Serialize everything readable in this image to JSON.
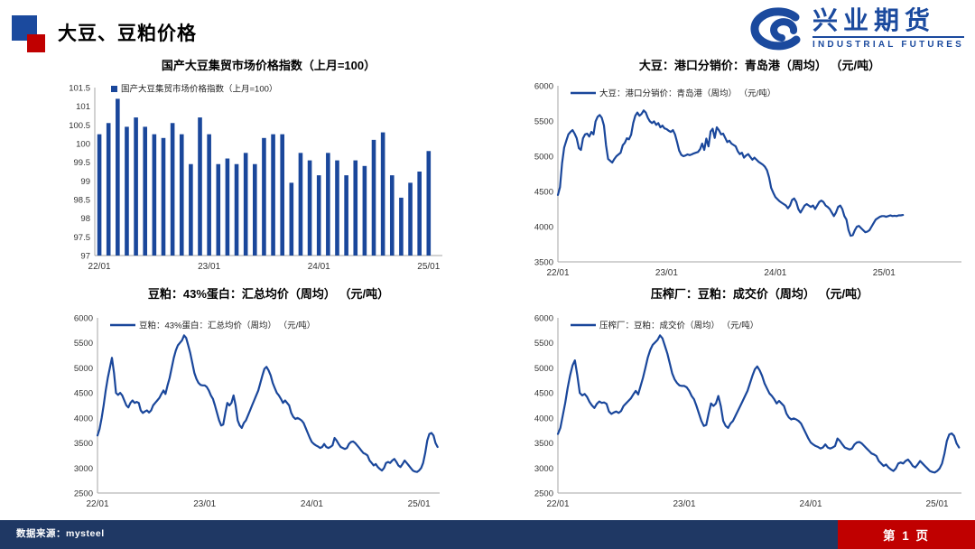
{
  "header": {
    "title": "大豆、豆粕价格",
    "logo_cn": "兴业期货",
    "logo_en": "INDUSTRIAL FUTURES"
  },
  "footer": {
    "source": "数据来源：mysteel",
    "page": "第 1 页"
  },
  "colors": {
    "chart_blue": "#1A479B",
    "brand_blue": "#1B4A9E",
    "accent_red": "#C00000",
    "footer_navy": "#1F3864",
    "axis_line": "#A6A6A6",
    "tick_text": "#333333"
  },
  "chart_data": [
    {
      "type": "bar",
      "title": "国产大豆集贸市场价格指数（上月=100）",
      "legend": "国产大豆集贸市场价格指数（上月=100）",
      "ylabel": "",
      "xlabel": "",
      "ylim": [
        97,
        101.5
      ],
      "yticks": [
        97,
        97.5,
        98,
        98.5,
        99,
        99.5,
        100,
        100.5,
        101,
        101.5
      ],
      "x_total": 38,
      "xticks": [
        {
          "label": "22/01",
          "pos": 0.5
        },
        {
          "label": "23/01",
          "pos": 12.5
        },
        {
          "label": "24/01",
          "pos": 24.5
        },
        {
          "label": "25/01",
          "pos": 36.5
        }
      ],
      "grid": false,
      "values": [
        100.25,
        100.55,
        101.2,
        100.45,
        100.7,
        100.45,
        100.25,
        100.15,
        100.55,
        100.25,
        99.45,
        100.7,
        100.25,
        99.45,
        99.6,
        99.45,
        99.75,
        99.45,
        100.15,
        100.25,
        100.25,
        98.95,
        99.75,
        99.55,
        99.15,
        99.75,
        99.55,
        99.15,
        99.55,
        99.4,
        100.1,
        100.3,
        99.15,
        98.55,
        98.95,
        99.25,
        99.8
      ]
    },
    {
      "type": "line",
      "title": "大豆：港口分销价：青岛港（周均） （元/吨）",
      "legend": "大豆：港口分销价：青岛港（周均） （元/吨）",
      "ylabel": "",
      "xlabel": "",
      "ylim": [
        3500,
        6000
      ],
      "yticks": [
        3500,
        4000,
        4500,
        5000,
        5500,
        6000
      ],
      "x_total": 193,
      "xticks": [
        {
          "label": "22/01",
          "pos": 0
        },
        {
          "label": "23/01",
          "pos": 52
        },
        {
          "label": "24/01",
          "pos": 104
        },
        {
          "label": "25/01",
          "pos": 156
        }
      ],
      "grid": false,
      "values": [
        4450,
        4560,
        4900,
        5120,
        5220,
        5310,
        5345,
        5370,
        5320,
        5255,
        5115,
        5090,
        5255,
        5310,
        5320,
        5280,
        5345,
        5310,
        5495,
        5560,
        5585,
        5545,
        5435,
        5155,
        4960,
        4935,
        4910,
        4960,
        5000,
        5025,
        5050,
        5155,
        5190,
        5255,
        5240,
        5305,
        5470,
        5575,
        5620,
        5575,
        5600,
        5650,
        5620,
        5545,
        5495,
        5470,
        5495,
        5445,
        5470,
        5410,
        5435,
        5395,
        5385,
        5360,
        5345,
        5370,
        5310,
        5200,
        5080,
        5020,
        5000,
        5010,
        5025,
        5015,
        5025,
        5040,
        5050,
        5060,
        5100,
        5180,
        5090,
        5250,
        5140,
        5350,
        5390,
        5260,
        5410,
        5370,
        5310,
        5320,
        5260,
        5200,
        5220,
        5180,
        5160,
        5140,
        5070,
        5030,
        5050,
        4980,
        5010,
        5030,
        4990,
        4950,
        4980,
        4950,
        4920,
        4900,
        4880,
        4850,
        4800,
        4700,
        4550,
        4480,
        4420,
        4390,
        4360,
        4340,
        4320,
        4300,
        4260,
        4300,
        4380,
        4400,
        4350,
        4250,
        4200,
        4250,
        4300,
        4320,
        4300,
        4280,
        4300,
        4250,
        4300,
        4350,
        4370,
        4350,
        4300,
        4280,
        4250,
        4200,
        4150,
        4200,
        4280,
        4300,
        4250,
        4150,
        4100,
        3950,
        3870,
        3880,
        3950,
        4000,
        4010,
        3980,
        3950,
        3920,
        3930,
        3950,
        4000,
        4050,
        4100,
        4120,
        4140,
        4150,
        4150,
        4140,
        4150,
        4160,
        4150,
        4155,
        4150,
        4160,
        4160,
        4165
      ]
    },
    {
      "type": "line",
      "title": "豆粕：43%蛋白：汇总均价（周均） （元/吨）",
      "legend": "豆粕：43%蛋白：汇总均价（周均） （元/吨）",
      "ylabel": "",
      "xlabel": "",
      "ylim": [
        2500,
        6000
      ],
      "yticks": [
        2500,
        3000,
        3500,
        4000,
        4500,
        5000,
        5500,
        6000
      ],
      "x_total": 166,
      "xticks": [
        {
          "label": "22/01",
          "pos": 0
        },
        {
          "label": "23/01",
          "pos": 52
        },
        {
          "label": "24/01",
          "pos": 104
        },
        {
          "label": "25/01",
          "pos": 156
        }
      ],
      "grid": false,
      "values": [
        3650,
        3780,
        4000,
        4250,
        4550,
        4800,
        5000,
        5200,
        4900,
        4500,
        4460,
        4500,
        4450,
        4350,
        4250,
        4210,
        4300,
        4350,
        4300,
        4320,
        4300,
        4150,
        4100,
        4130,
        4150,
        4110,
        4150,
        4250,
        4300,
        4350,
        4400,
        4480,
        4550,
        4480,
        4650,
        4800,
        5000,
        5200,
        5350,
        5450,
        5500,
        5550,
        5650,
        5600,
        5450,
        5300,
        5100,
        4900,
        4780,
        4700,
        4660,
        4650,
        4650,
        4620,
        4550,
        4450,
        4380,
        4250,
        4100,
        3950,
        3850,
        3870,
        4100,
        4300,
        4250,
        4300,
        4450,
        4250,
        3950,
        3850,
        3800,
        3900,
        3950,
        4050,
        4150,
        4250,
        4350,
        4450,
        4550,
        4700,
        4850,
        4980,
        5020,
        4950,
        4850,
        4700,
        4600,
        4500,
        4450,
        4380,
        4300,
        4350,
        4300,
        4250,
        4100,
        4020,
        3980,
        4000,
        3980,
        3950,
        3900,
        3800,
        3700,
        3600,
        3520,
        3480,
        3450,
        3430,
        3400,
        3420,
        3480,
        3420,
        3400,
        3420,
        3450,
        3600,
        3550,
        3480,
        3420,
        3400,
        3380,
        3400,
        3480,
        3520,
        3530,
        3500,
        3450,
        3400,
        3350,
        3300,
        3280,
        3250,
        3150,
        3100,
        3050,
        3080,
        3020,
        2980,
        2950,
        3000,
        3100,
        3120,
        3100,
        3150,
        3180,
        3120,
        3050,
        3020,
        3080,
        3150,
        3100,
        3050,
        3000,
        2950,
        2930,
        2920,
        2950,
        3000,
        3100,
        3300,
        3550,
        3680,
        3700,
        3650,
        3500,
        3420
      ]
    },
    {
      "type": "line",
      "title": "压榨厂：豆粕：成交价（周均） （元/吨）",
      "legend": "压榨厂：豆粕：成交价（周均） （元/吨）",
      "ylabel": "",
      "xlabel": "",
      "ylim": [
        2500,
        6000
      ],
      "yticks": [
        2500,
        3000,
        3500,
        4000,
        4500,
        5000,
        5500,
        6000
      ],
      "x_total": 166,
      "xticks": [
        {
          "label": "22/01",
          "pos": 0
        },
        {
          "label": "23/01",
          "pos": 52
        },
        {
          "label": "24/01",
          "pos": 104
        },
        {
          "label": "25/01",
          "pos": 156
        }
      ],
      "grid": false,
      "values": [
        3680,
        3800,
        4050,
        4300,
        4600,
        4850,
        5050,
        5150,
        4850,
        4500,
        4450,
        4480,
        4420,
        4320,
        4250,
        4200,
        4280,
        4330,
        4300,
        4310,
        4280,
        4130,
        4080,
        4110,
        4130,
        4100,
        4140,
        4240,
        4290,
        4340,
        4390,
        4470,
        4540,
        4470,
        4640,
        4800,
        5000,
        5210,
        5360,
        5460,
        5510,
        5560,
        5650,
        5590,
        5440,
        5290,
        5090,
        4890,
        4770,
        4700,
        4650,
        4640,
        4640,
        4610,
        4540,
        4440,
        4370,
        4240,
        4090,
        3940,
        3840,
        3860,
        4090,
        4290,
        4240,
        4290,
        4440,
        4240,
        3940,
        3840,
        3800,
        3890,
        3940,
        4040,
        4140,
        4240,
        4340,
        4440,
        4540,
        4690,
        4840,
        4970,
        5030,
        4950,
        4840,
        4690,
        4590,
        4490,
        4440,
        4370,
        4290,
        4340,
        4290,
        4240,
        4090,
        4010,
        3970,
        3990,
        3970,
        3940,
        3890,
        3790,
        3690,
        3590,
        3510,
        3470,
        3440,
        3420,
        3390,
        3410,
        3470,
        3410,
        3390,
        3410,
        3440,
        3590,
        3540,
        3470,
        3410,
        3390,
        3370,
        3390,
        3470,
        3510,
        3520,
        3490,
        3440,
        3390,
        3340,
        3290,
        3270,
        3240,
        3140,
        3090,
        3040,
        3070,
        3010,
        2970,
        2940,
        2990,
        3090,
        3110,
        3090,
        3140,
        3170,
        3110,
        3040,
        3010,
        3070,
        3140,
        3090,
        3040,
        2990,
        2940,
        2920,
        2910,
        2940,
        2990,
        3090,
        3290,
        3540,
        3670,
        3690,
        3640,
        3490,
        3410
      ]
    }
  ]
}
